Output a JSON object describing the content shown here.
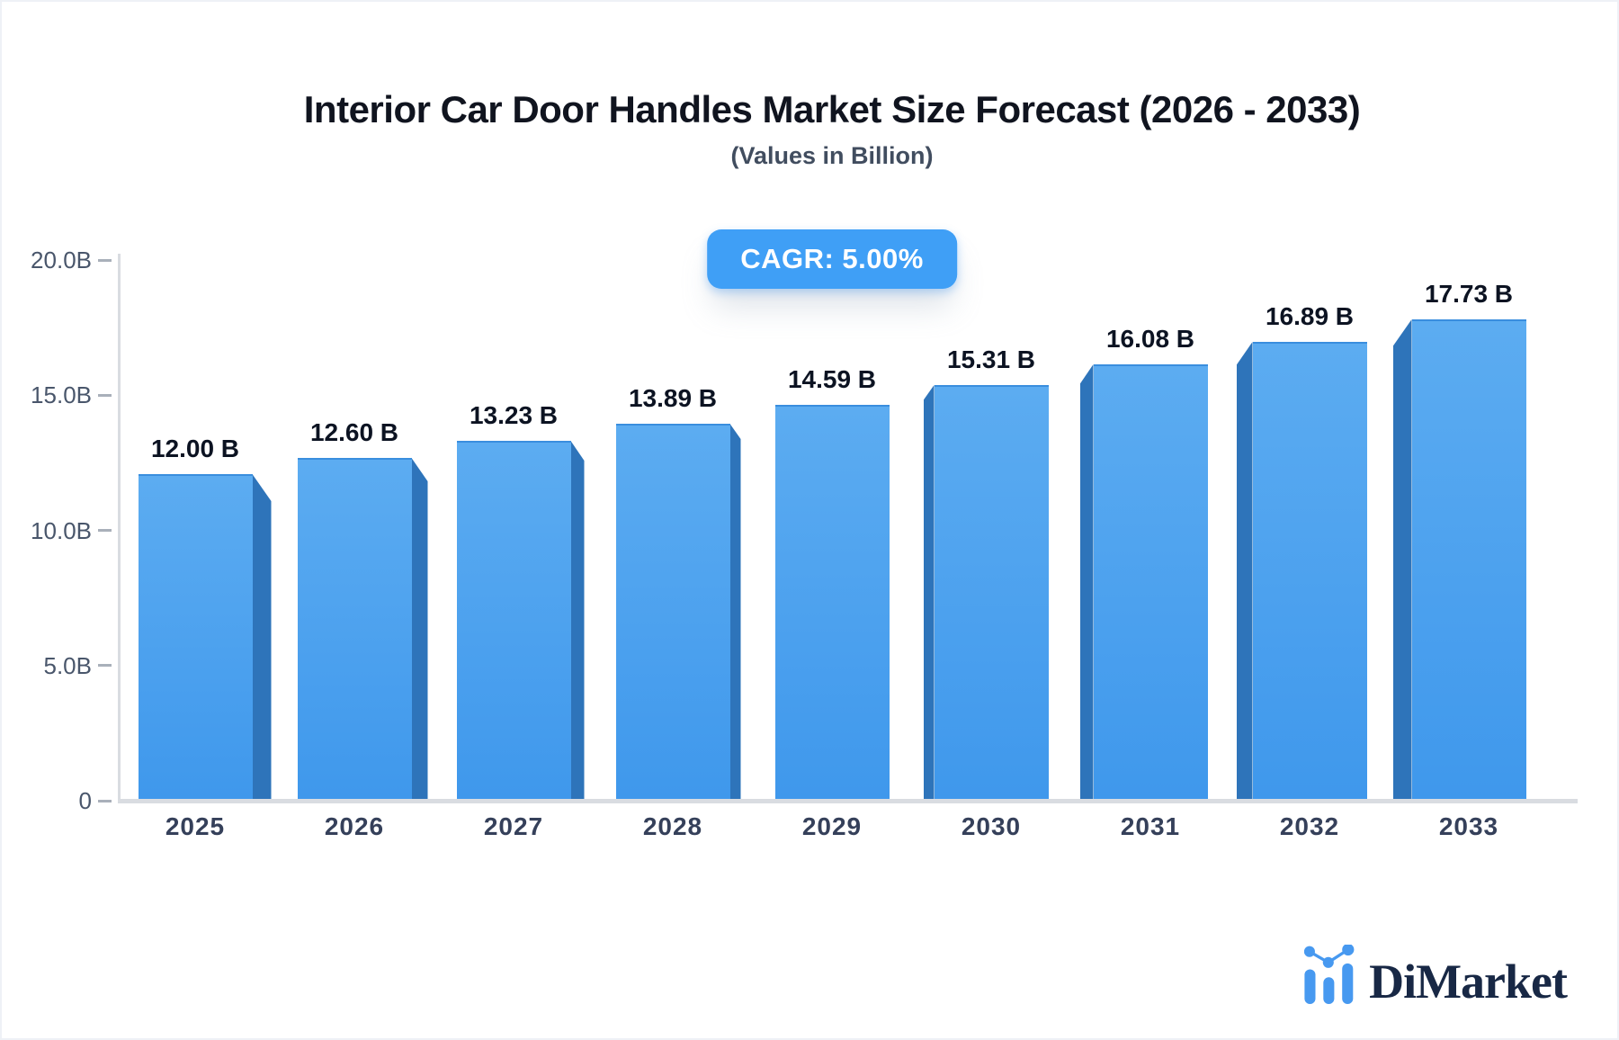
{
  "header": {
    "title": "Interior Car Door Handles Market Size Forecast (2026 - 2033)",
    "subtitle": "(Values in Billion)"
  },
  "badge": {
    "label": "CAGR: 5.00%",
    "bg_color": "#3f9ff6",
    "text_color": "#ffffff"
  },
  "chart_data": {
    "type": "bar",
    "title": "Interior Car Door Handles Market Size Forecast (2026 - 2033)",
    "subtitle": "(Values in Billion)",
    "categories": [
      "2025",
      "2026",
      "2027",
      "2028",
      "2029",
      "2030",
      "2031",
      "2032",
      "2033"
    ],
    "values": [
      12.0,
      12.6,
      13.23,
      13.89,
      14.59,
      15.31,
      16.08,
      16.89,
      17.73
    ],
    "value_labels": [
      "12.00 B",
      "12.60 B",
      "13.23 B",
      "13.89 B",
      "14.59 B",
      "15.31 B",
      "16.08 B",
      "16.89 B",
      "17.73 B"
    ],
    "xlabel": "",
    "ylabel": "",
    "ylim": [
      0,
      20
    ],
    "yticks": {
      "values": [
        20,
        15,
        10,
        5,
        0
      ],
      "labels": [
        "20.0B",
        "15.0B",
        "10.0B",
        "5.0B",
        "0"
      ]
    },
    "grid": false,
    "legend": false,
    "style_3d": true,
    "bar_colors": {
      "front_top": "#5cacf1",
      "front_bottom": "#3f98ec",
      "side": "#2e74ba"
    }
  },
  "logo": {
    "text": "DiMarket",
    "icon": "bar-line-chart-icon",
    "text_color": "#182845",
    "icon_color": "#4799f0"
  }
}
